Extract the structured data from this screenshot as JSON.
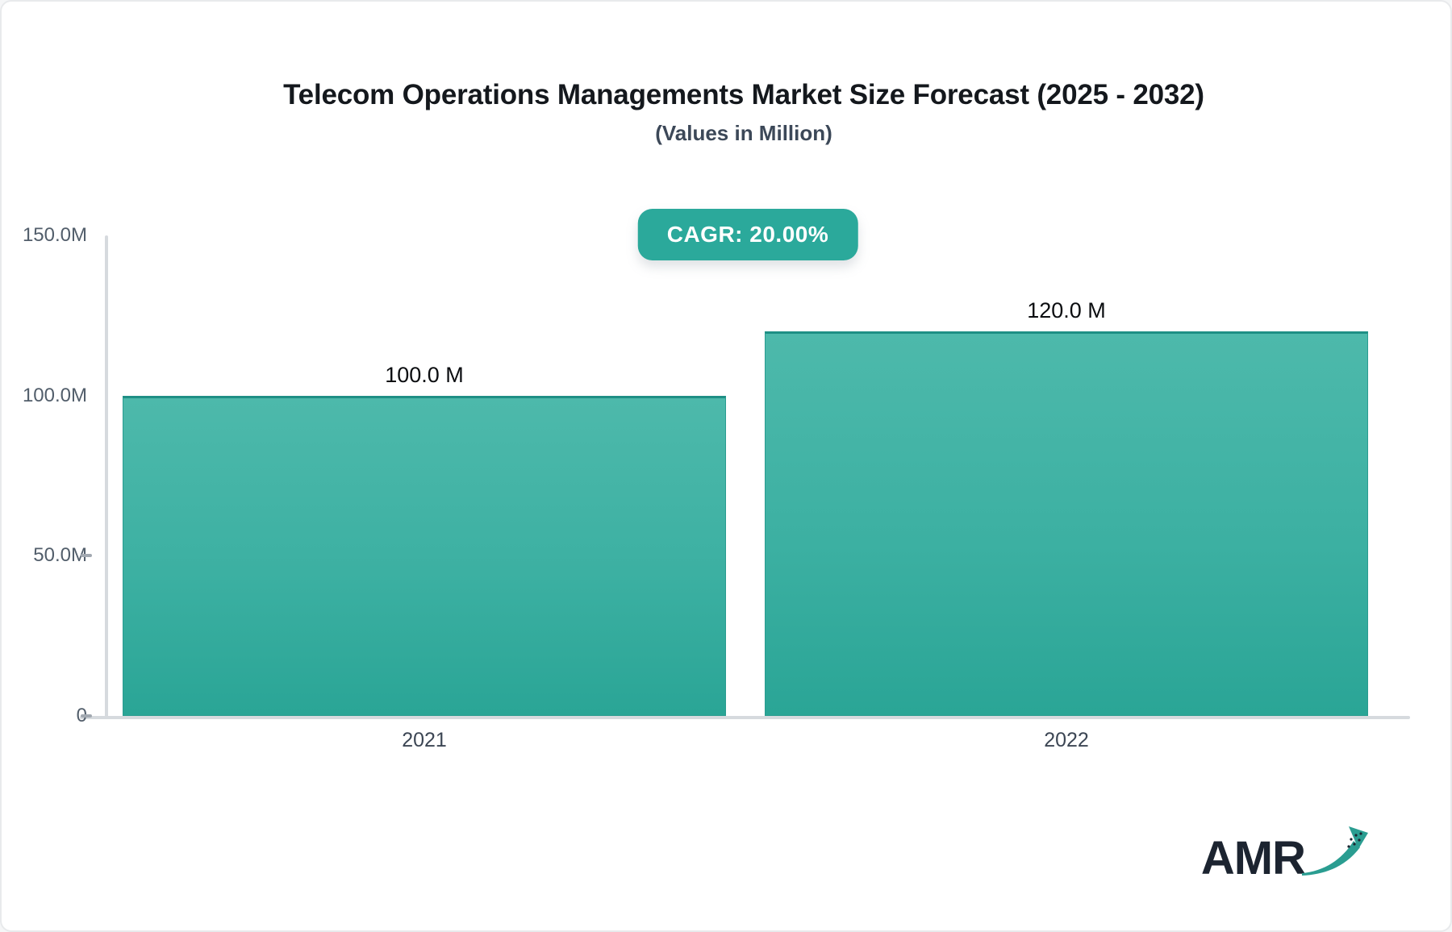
{
  "chart_data": {
    "type": "bar",
    "title": "Telecom Operations Managements Market Size Forecast (2025 - 2032)",
    "subtitle": "(Values in Million)",
    "cagr_badge": "CAGR: 20.00%",
    "categories": [
      "2021",
      "2022"
    ],
    "values": [
      100.0,
      120.0
    ],
    "value_labels": [
      "100.0 M",
      "120.0 M"
    ],
    "ylim": [
      0,
      150
    ],
    "y_ticks": [
      {
        "label": "150.0M",
        "value": 150,
        "dash": false
      },
      {
        "label": "100.0M",
        "value": 100,
        "dash": false
      },
      {
        "label": "50.0M",
        "value": 50,
        "dash": true
      },
      {
        "label": "0",
        "value": 0,
        "dash": true
      }
    ],
    "grid": false,
    "legend": "none",
    "xlabel": "",
    "ylabel": "",
    "bar_color_top": "#4db9ab",
    "bar_color_bottom": "#2aa596",
    "bar_border_color": "#1e8f85",
    "badge_color": "#2ba99b",
    "axis_color": "#d6dade"
  },
  "logo": {
    "text": "AMR",
    "icon": "trend-up-arrow-icon",
    "arrow_color": "#2a9d91",
    "text_color": "#1c2430"
  }
}
